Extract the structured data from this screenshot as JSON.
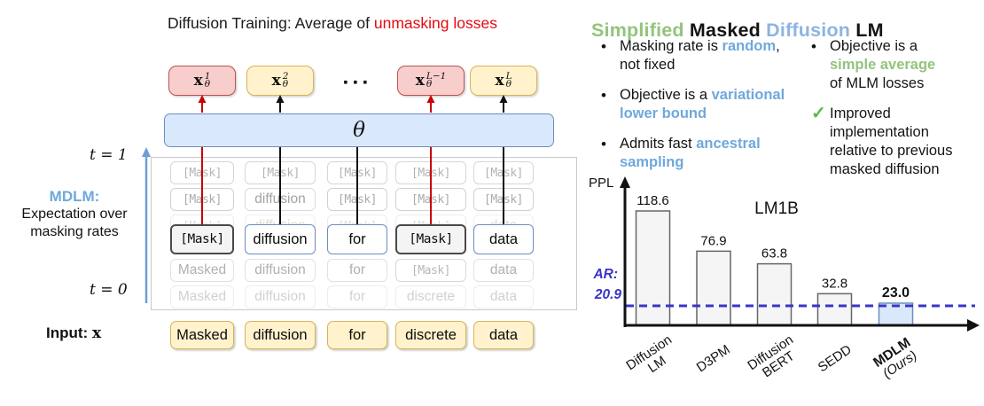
{
  "left": {
    "title": {
      "prefix": "Diffusion Training: Average of ",
      "highlight": "unmasking losses"
    },
    "theta_label": "θ",
    "dots": "···",
    "timeline": {
      "top": "t = 1",
      "bottom": "t = 0"
    },
    "mdlm": {
      "name": "MDLM:",
      "desc_line1": "Expectation over",
      "desc_line2": "masking rates"
    },
    "outputs": [
      {
        "sup": "1",
        "variant": "red"
      },
      {
        "sup": "2",
        "variant": "yellow"
      },
      {
        "sup": "L−1",
        "variant": "red"
      },
      {
        "sup": "L",
        "variant": "yellow"
      }
    ],
    "output_base": "x",
    "output_sub": "θ",
    "grid_rows": [
      {
        "fade": 0.4,
        "solid": false,
        "tokens": [
          {
            "t": "[Mask]",
            "k": "mask"
          },
          {
            "t": "[Mask]",
            "k": "mask"
          },
          {
            "t": "[Mask]",
            "k": "mask"
          },
          {
            "t": "[Mask]",
            "k": "mask"
          },
          {
            "t": "[Mask]",
            "k": "mask"
          }
        ]
      },
      {
        "fade": 0.45,
        "solid": false,
        "tokens": [
          {
            "t": "[Mask]",
            "k": "mask"
          },
          {
            "t": "diffusion",
            "k": "word"
          },
          {
            "t": "[Mask]",
            "k": "mask"
          },
          {
            "t": "[Mask]",
            "k": "mask"
          },
          {
            "t": "[Mask]",
            "k": "mask"
          }
        ]
      },
      {
        "fade": 0.18,
        "solid": false,
        "tokens": [
          {
            "t": "[Mask]",
            "k": "mask"
          },
          {
            "t": "diffusion",
            "k": "word"
          },
          {
            "t": "[Mask]",
            "k": "mask"
          },
          {
            "t": "[Mask]",
            "k": "mask"
          },
          {
            "t": "data",
            "k": "word"
          }
        ]
      },
      {
        "fade": 1,
        "solid": true,
        "tokens": [
          {
            "t": "[Mask]",
            "k": "mask"
          },
          {
            "t": "diffusion",
            "k": "word"
          },
          {
            "t": "for",
            "k": "word"
          },
          {
            "t": "[Mask]",
            "k": "mask"
          },
          {
            "t": "data",
            "k": "word"
          }
        ]
      },
      {
        "fade": 0.38,
        "solid": false,
        "tokens": [
          {
            "t": "Masked",
            "k": "word"
          },
          {
            "t": "diffusion",
            "k": "word"
          },
          {
            "t": "for",
            "k": "word"
          },
          {
            "t": "[Mask]",
            "k": "mask"
          },
          {
            "t": "data",
            "k": "word"
          }
        ]
      },
      {
        "fade": 0.22,
        "solid": false,
        "tokens": [
          {
            "t": "Masked",
            "k": "word"
          },
          {
            "t": "diffusion",
            "k": "word"
          },
          {
            "t": "for",
            "k": "word"
          },
          {
            "t": "discrete",
            "k": "word"
          },
          {
            "t": "data",
            "k": "word"
          }
        ]
      }
    ],
    "input": {
      "label": "Input:",
      "symbol": "x",
      "tokens": [
        "Masked",
        "diffusion",
        "for",
        "discrete",
        "data"
      ]
    }
  },
  "right": {
    "title_segments": [
      {
        "t": "Simplified ",
        "c": "green"
      },
      {
        "t": "Masked ",
        "c": "black"
      },
      {
        "t": "Diffusion ",
        "c": "blue"
      },
      {
        "t": "LM",
        "c": "black"
      }
    ],
    "bullets_left": [
      {
        "marker": "dot",
        "lines": [
          [
            {
              "t": "Masking rate is "
            },
            {
              "t": "random",
              "c": "blue"
            },
            {
              "t": ","
            }
          ],
          [
            {
              "t": "not fixed"
            }
          ]
        ]
      },
      {
        "marker": "dot",
        "lines": [
          [
            {
              "t": "Objective is a "
            },
            {
              "t": "variational",
              "c": "blue"
            }
          ],
          [
            {
              "t": "lower bound",
              "c": "blue"
            }
          ]
        ]
      },
      {
        "marker": "dot",
        "lines": [
          [
            {
              "t": "Admits fast "
            },
            {
              "t": "ancestral",
              "c": "blue"
            }
          ],
          [
            {
              "t": "sampling",
              "c": "blue"
            }
          ]
        ]
      }
    ],
    "bullets_right": [
      {
        "marker": "dot",
        "lines": [
          [
            {
              "t": "Objective is a"
            }
          ],
          [
            {
              "t": "simple average",
              "c": "green"
            }
          ],
          [
            {
              "t": "of MLM losses"
            }
          ]
        ]
      },
      {
        "marker": "check",
        "lines": [
          [
            {
              "t": "Improved"
            }
          ],
          [
            {
              "t": "implementation"
            }
          ],
          [
            {
              "t": "relative to previous"
            }
          ],
          [
            {
              "t": "masked diffusion"
            }
          ]
        ]
      }
    ]
  },
  "chart_data": {
    "type": "bar",
    "title": "LM1B",
    "ylabel": "PPL",
    "xlabel": "",
    "categories": [
      "Diffusion LM",
      "D3PM",
      "Diffusion BERT",
      "SEDD",
      "MDLM (Ours)"
    ],
    "tick_lines": [
      [
        "Diffusion",
        "LM"
      ],
      [
        "D3PM"
      ],
      [
        "Diffusion",
        "BERT"
      ],
      [
        "SEDD"
      ],
      [
        "MDLM",
        "(Ours)"
      ]
    ],
    "values": [
      118.6,
      76.9,
      63.8,
      32.8,
      23.0
    ],
    "value_labels": [
      "118.6",
      "76.9",
      "63.8",
      "32.8",
      "23.0"
    ],
    "highlight_index": 4,
    "reference_line": {
      "label": "AR:",
      "value": 20.9,
      "value_label": "20.9",
      "style": "dashed"
    },
    "ylim": [
      0,
      140
    ],
    "grid": false,
    "legend": false
  },
  "icons": {
    "bullet_dot": "•",
    "check_mark": "✓",
    "up_arrow": "arrowhead-up",
    "right_arrow": "arrowhead-right"
  },
  "colors": {
    "accent_green": "#93c47d",
    "accent_blue": "#6fa8dc",
    "title_blue": "#8db4e2",
    "red_text": "#e60b12",
    "red_arrow": "#cc0000",
    "black_arrow": "#111111",
    "timeline_blue": "#6e9ed6",
    "ar_blue": "#3a35c9",
    "bar_fill": "#f5f5f5",
    "bar_stroke": "#666666",
    "highlight_fill": "#dae8fc",
    "highlight_stroke": "#6c8ebf",
    "box_pink": "#f8cecc",
    "box_pink_border": "#b85450",
    "box_yellow": "#fff2cc",
    "box_yellow_border": "#d6b656",
    "check_green": "#5bb948"
  }
}
